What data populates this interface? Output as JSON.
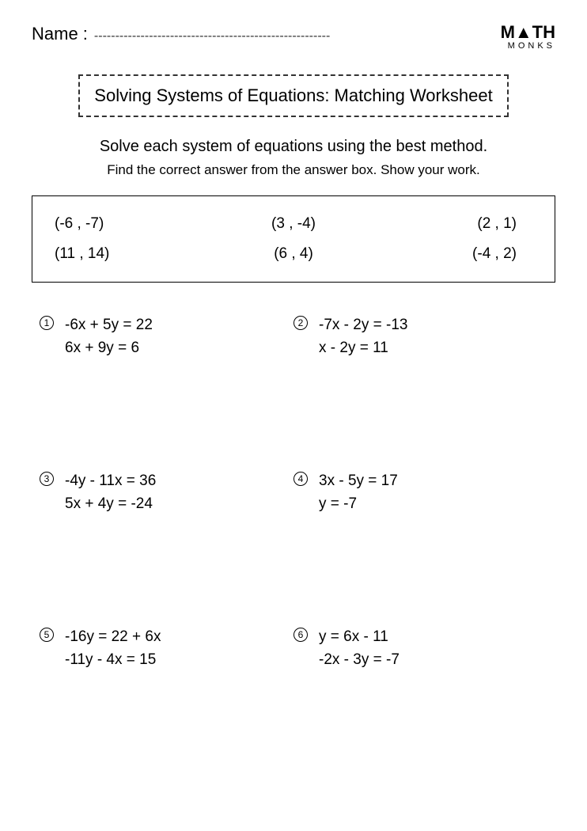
{
  "header": {
    "name_label": "Name :",
    "name_blank": "--------------------------------------------------------",
    "logo_main": "M▲TH",
    "logo_sub": "MONKS"
  },
  "title": "Solving Systems of Equations: Matching Worksheet",
  "instructions": {
    "line1": "Solve each system of equations using the best method.",
    "line2": "Find the correct answer from the answer box. Show your work."
  },
  "answers": {
    "row1": [
      "(-6 , -7)",
      "(3 , -4)",
      "(2 , 1)"
    ],
    "row2": [
      "(11 , 14)",
      "(6 , 4)",
      "(-4 , 2)"
    ]
  },
  "problems": [
    {
      "num": "1",
      "eq1": "-6x + 5y = 22",
      "eq2": "6x + 9y = 6"
    },
    {
      "num": "2",
      "eq1": "-7x - 2y = -13",
      "eq2": "x - 2y = 11"
    },
    {
      "num": "3",
      "eq1": "-4y - 11x = 36",
      "eq2": "5x + 4y = -24"
    },
    {
      "num": "4",
      "eq1": "3x - 5y = 17",
      "eq2": "y = -7"
    },
    {
      "num": "5",
      "eq1": "-16y = 22 + 6x",
      "eq2": "-11y - 4x = 15"
    },
    {
      "num": "6",
      "eq1": "y = 6x - 11",
      "eq2": "-2x - 3y = -7"
    }
  ]
}
